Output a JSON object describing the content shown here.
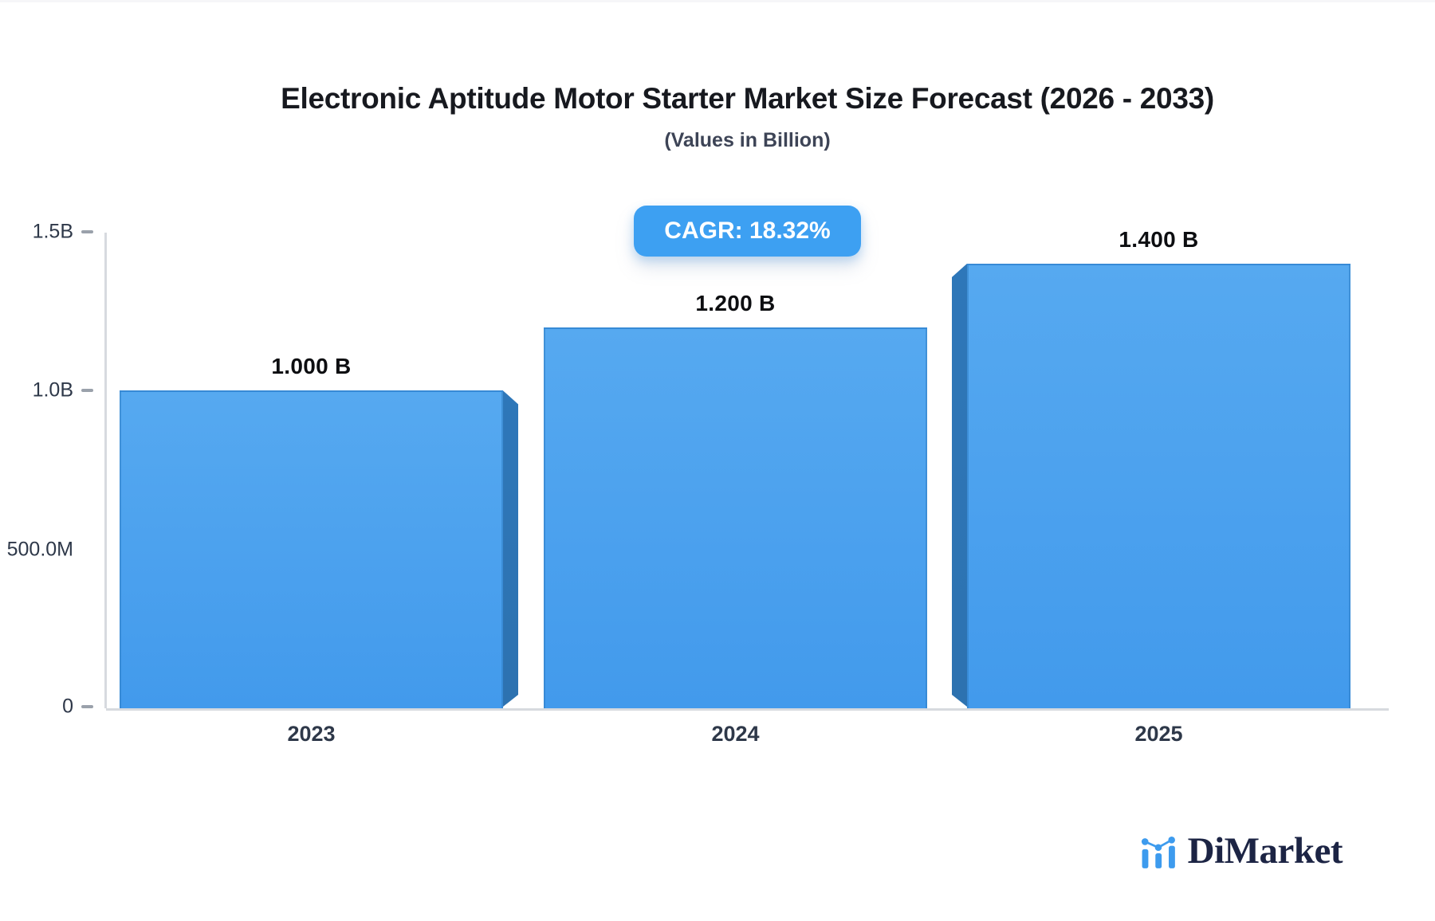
{
  "header": {
    "title": "Electronic Aptitude Motor Starter Market Size Forecast (2026 - 2033)",
    "subtitle": "(Values in Billion)"
  },
  "cagr_badge": {
    "label": "CAGR: 18.32%"
  },
  "brand": {
    "name": "DiMarket",
    "icon": "bar-line-chart-icon"
  },
  "colors": {
    "title_text": "#17191f",
    "subtitle_text": "#3d4456",
    "badge_bg": "#3da0f2",
    "badge_text": "#ffffff",
    "bar_top": "#56a9f0",
    "bar_bottom": "#429aec",
    "bar_side": "#2d74b6",
    "axis_line": "#d7dadf",
    "tick_dash": "#9aa1ab",
    "axis_label": "#2e3849",
    "value_label": "#0d0e11",
    "logo_text": "#1c2444",
    "logo_blue": "#3d9bee"
  },
  "chart_data": {
    "type": "bar",
    "title": "Electronic Aptitude Motor Starter Market Size Forecast (2026 - 2033)",
    "subtitle": "(Values in Billion)",
    "unit": "Billion",
    "cagr_percent": 18.32,
    "categories": [
      "2023",
      "2024",
      "2025"
    ],
    "values": [
      1.0,
      1.2,
      1.4
    ],
    "value_labels": [
      "1.000 B",
      "1.200 B",
      "1.400 B"
    ],
    "ylim": [
      0,
      1.5
    ],
    "yticks": [
      {
        "value": 0,
        "label": "0",
        "dash": true
      },
      {
        "value": 0.5,
        "label": "500.0M",
        "dash": false
      },
      {
        "value": 1.0,
        "label": "1.0B",
        "dash": true
      },
      {
        "value": 1.5,
        "label": "1.5B",
        "dash": true
      }
    ],
    "grid": false,
    "legend": "none",
    "bar_color": "#459fee"
  }
}
